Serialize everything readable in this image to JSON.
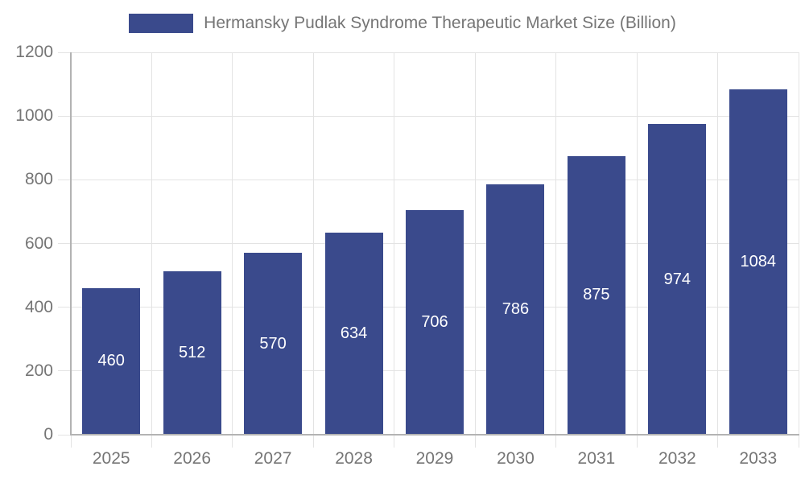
{
  "legend": {
    "label": "Hermansky Pudlak Syndrome Therapeutic Market Size (Billion)"
  },
  "colors": {
    "bar": "#3A4A8C",
    "axis": "#b3b3b3",
    "grid": "#e3e3e3",
    "tick_label": "#757575",
    "bar_label": "#ffffff",
    "background": "#ffffff"
  },
  "chart_data": {
    "type": "bar",
    "title": "Hermansky Pudlak Syndrome Therapeutic Market Size (Billion)",
    "categories": [
      "2025",
      "2026",
      "2027",
      "2028",
      "2029",
      "2030",
      "2031",
      "2032",
      "2033"
    ],
    "values": [
      460,
      512,
      570,
      634,
      706,
      786,
      875,
      974,
      1084
    ],
    "xlabel": "",
    "ylabel": "",
    "ylim": [
      0,
      1200
    ],
    "ytick_step": 200,
    "ytick_labels": [
      "0",
      "200",
      "400",
      "600",
      "800",
      "1000",
      "1200"
    ],
    "grid": true,
    "legend_position": "top",
    "bar_value_labels": "inside-center"
  }
}
